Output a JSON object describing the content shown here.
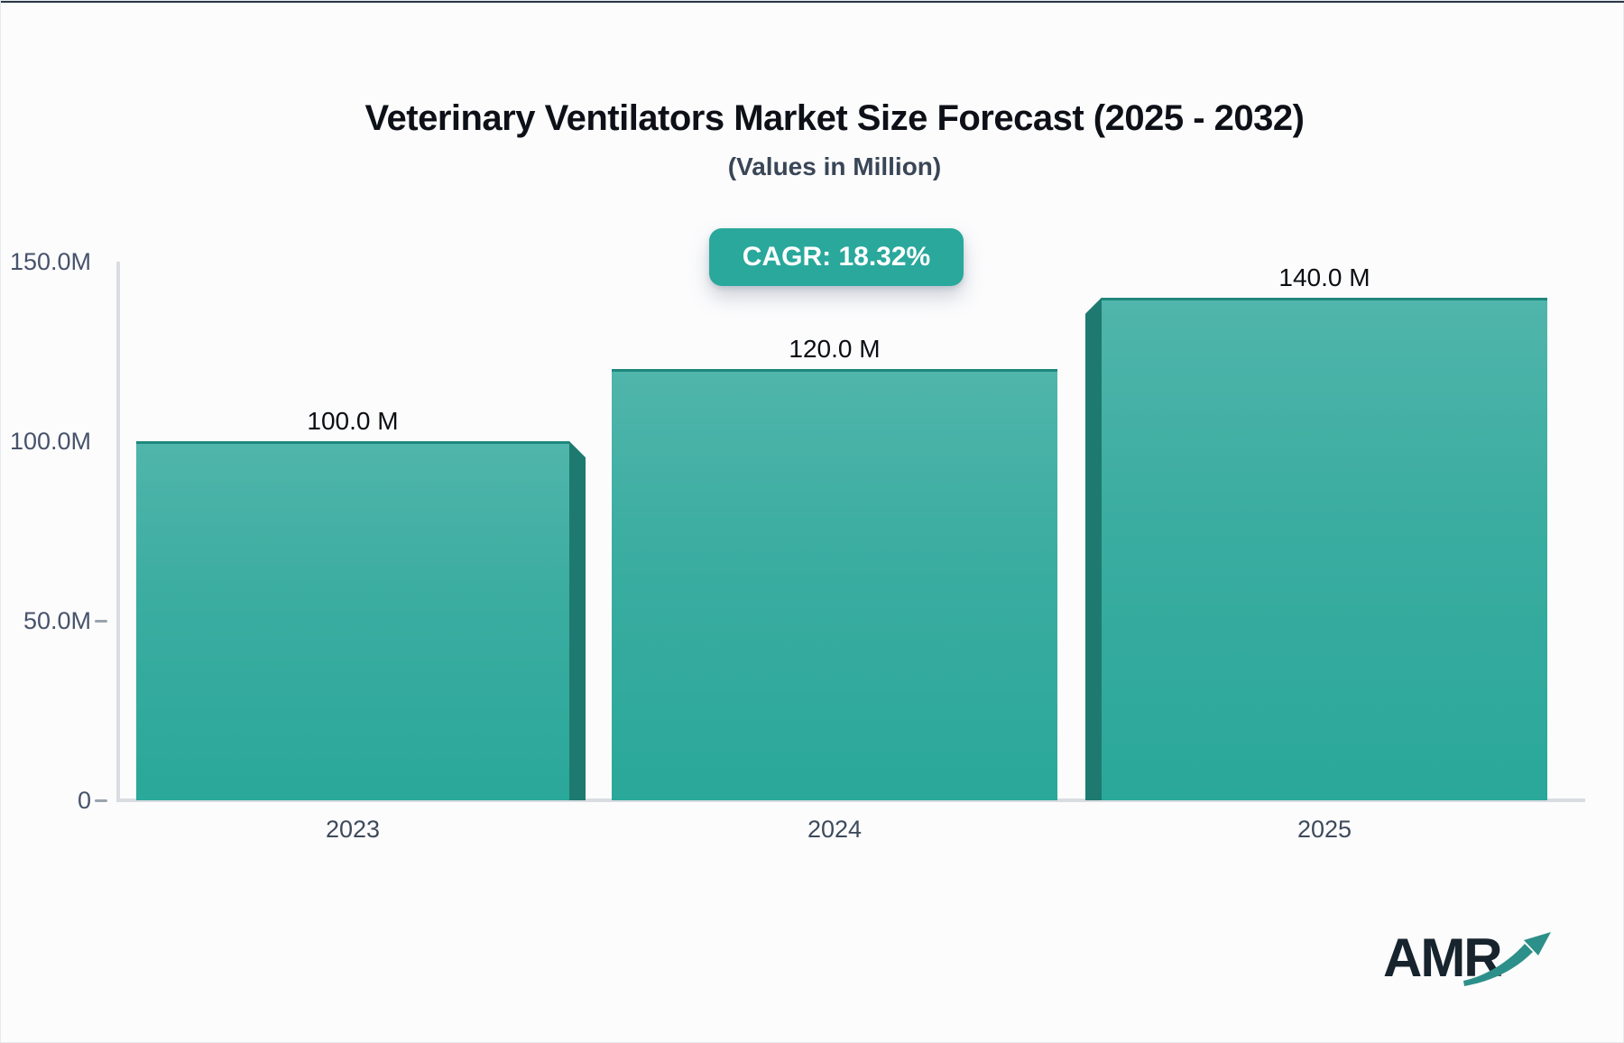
{
  "page": {
    "title": "Veterinary Ventilators Market Size Forecast (2025 - 2032)",
    "subtitle": "(Values in Million)",
    "cagr_badge": "CAGR: 18.32%",
    "logo_text": "AMR",
    "logo_icon": "trend-arrow-icon"
  },
  "colors": {
    "bar_gradient_top": "#50b5ab",
    "bar_gradient_bottom": "#2aa89a",
    "bar_top_border": "#1f877b",
    "bar_side_3d": "#1e7a70",
    "badge_background": "#2aa89c",
    "badge_text": "#ffffff",
    "axis_line": "#d9dce1",
    "tick_dash": "#9aa3ae",
    "y_tick_text": "#47536b",
    "x_tick_text": "#3e4a5c",
    "title_text": "#0d1117",
    "subtitle_text": "#3a4656",
    "value_label_text": "#0b0e12",
    "logo_text_color": "#17242e",
    "logo_arrow_color": "#2d8f89",
    "background": "#fcfcfd"
  },
  "chart_data": {
    "type": "bar",
    "title": "Veterinary Ventilators Market Size Forecast (2025 - 2032)",
    "subtitle": "(Values in Million)",
    "annotation": "CAGR: 18.32%",
    "categories": [
      "2023",
      "2024",
      "2025"
    ],
    "values": [
      100.0,
      120.0,
      140.0
    ],
    "value_labels": [
      "100.0 M",
      "120.0 M",
      "140.0 M"
    ],
    "unit": "Million",
    "ylim": [
      0,
      150
    ],
    "yticks": [
      {
        "label": "150.0M",
        "value": 150,
        "dash": false
      },
      {
        "label": "100.0M",
        "value": 100,
        "dash": false
      },
      {
        "label": "50.0M",
        "value": 50,
        "dash": true
      },
      {
        "label": "0",
        "value": 0,
        "dash": true
      }
    ],
    "grid": false,
    "legend": null,
    "bar_style": {
      "effect": "3d-extrude",
      "side3d": [
        "right",
        "none",
        "left"
      ]
    }
  }
}
